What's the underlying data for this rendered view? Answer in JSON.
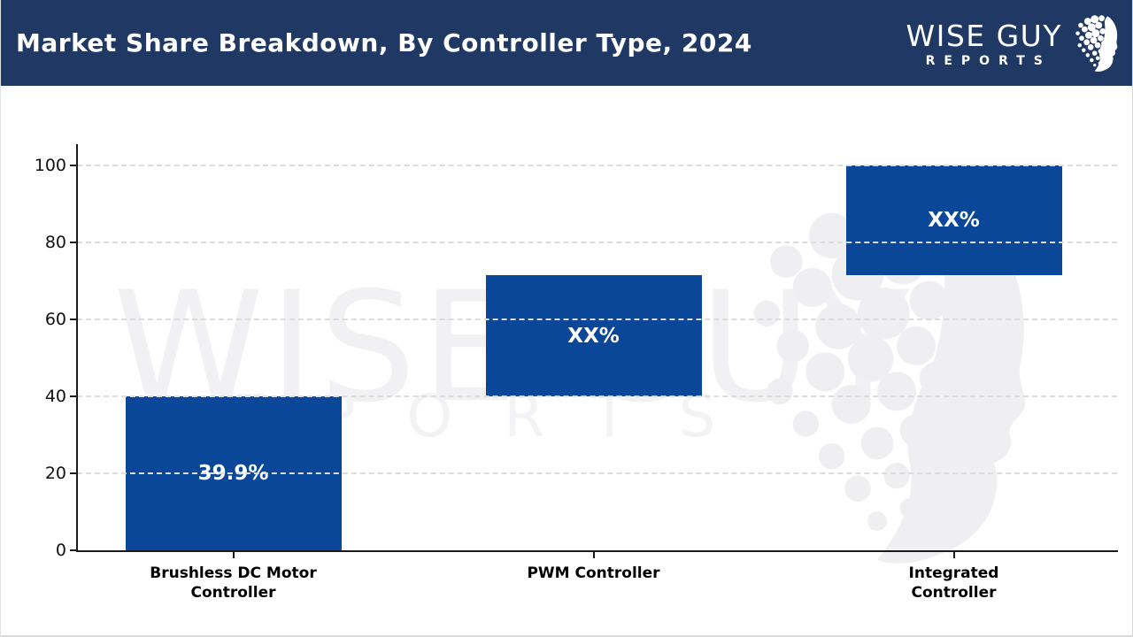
{
  "header": {
    "title": "Market Share Breakdown, By Controller Type, 2024",
    "logo": {
      "title": "WISE GUY",
      "subtitle": "REPORTS"
    }
  },
  "watermark": {
    "line1": "WISE GUY",
    "line2": "REPORTS"
  },
  "chart_data": {
    "type": "bar",
    "subtype": "stacked-waterfall",
    "title": "Market Share Breakdown, By Controller Type, 2024",
    "categories": [
      "Brushless DC Motor Controller",
      "PWM Controller",
      "Integrated Controller"
    ],
    "bars": [
      {
        "category": "Brushless DC Motor Controller",
        "start": 0,
        "end": 39.9,
        "value_label": "39.9%"
      },
      {
        "category": "PWM Controller",
        "start": 39.9,
        "end": 71.5,
        "value_label": "XX%"
      },
      {
        "category": "Integrated Controller",
        "start": 71.5,
        "end": 100,
        "value_label": "XX%"
      }
    ],
    "ylim": [
      0,
      100
    ],
    "yticks": [
      0,
      20,
      40,
      60,
      80,
      100
    ],
    "grid": "horizontal-dashed",
    "legend": "none",
    "bar_color": "#0B4799",
    "bar_label_color": "#FFFFFF"
  },
  "colors": {
    "header_bg": "#1F3864",
    "axis": "#1A1A1A",
    "gridline": "#DCDCDC",
    "watermark": "#F1F1F4"
  }
}
